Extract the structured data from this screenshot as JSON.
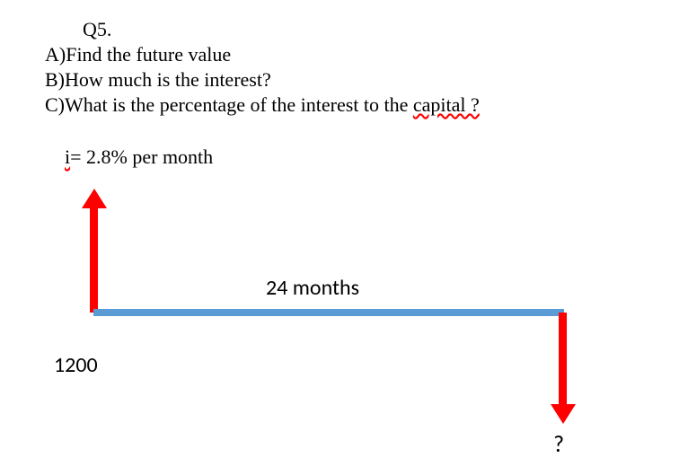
{
  "question": {
    "number": "Q5.",
    "partA": "A)Find the future value",
    "partB": "B)How much is the interest?",
    "partC_prefix": "C)What is the percentage of the interest to the ",
    "partC_underlined": "capital ?"
  },
  "rate": {
    "i_char": "i",
    "text": "= 2.8% per month"
  },
  "diagram": {
    "duration_label": "24 months",
    "present_value": "1200",
    "future_value": "?",
    "timeline_color": "#5b9bd5",
    "arrow_color": "#ff0000"
  }
}
